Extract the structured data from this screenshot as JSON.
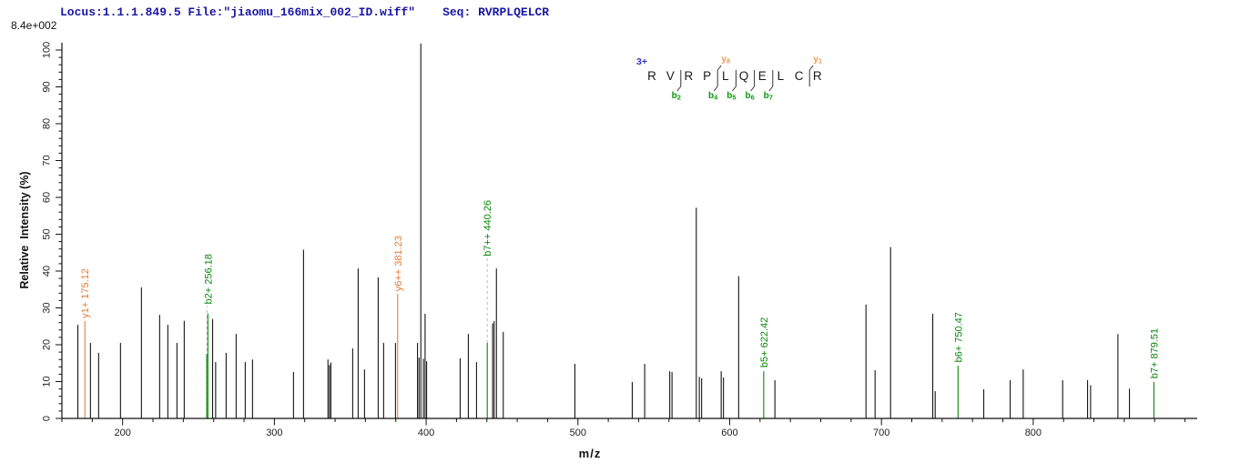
{
  "header": {
    "locus_file": "Locus:1.1.1.849.5 File:\"jiaomu_166mix_002_ID.wiff\"",
    "seq": "Seq: RVRPLQELCR"
  },
  "scale_label": "8.4e+002",
  "chart_data": {
    "type": "stem",
    "title": "MS/MS fragmentation spectrum",
    "xlabel": "m/z",
    "ylabel": "Relative  Intensity (%)",
    "xlim": [
      160,
      908
    ],
    "ylim": [
      0,
      100
    ],
    "x_major_ticks": [
      200,
      300,
      400,
      500,
      600,
      700,
      800
    ],
    "x_minor_step": 20,
    "y_major_step": 10,
    "y_minor_step": 2,
    "legend": "none",
    "grid": false,
    "colors": {
      "peak": "#151515",
      "b_ion": "#0a870a",
      "y_ion": "#e07e3c",
      "axis": "#111111"
    },
    "peaks": [
      {
        "mz": 170.5,
        "i": 25.4
      },
      {
        "mz": 175.12,
        "i": 26.4,
        "ion": "y",
        "label": "y1+ 175.12",
        "label_base": 27.2
      },
      {
        "mz": 178.8,
        "i": 20.5
      },
      {
        "mz": 184.2,
        "i": 17.8
      },
      {
        "mz": 198.6,
        "i": 20.5
      },
      {
        "mz": 212.4,
        "i": 35.6
      },
      {
        "mz": 224.4,
        "i": 28.1
      },
      {
        "mz": 229.8,
        "i": 25.4
      },
      {
        "mz": 235.8,
        "i": 20.5
      },
      {
        "mz": 240.6,
        "i": 26.5
      },
      {
        "mz": 255.4,
        "i": 17.5,
        "ion": "b"
      },
      {
        "mz": 256.18,
        "i": 28.5,
        "ion": "b",
        "label": "b2+ 256.18",
        "label_base": 31.0
      },
      {
        "mz": 259.3,
        "i": 27.0
      },
      {
        "mz": 261.3,
        "i": 15.3
      },
      {
        "mz": 268.2,
        "i": 17.8
      },
      {
        "mz": 274.8,
        "i": 22.9
      },
      {
        "mz": 280.8,
        "i": 15.3
      },
      {
        "mz": 285.6,
        "i": 16.0
      },
      {
        "mz": 312.6,
        "i": 12.6
      },
      {
        "mz": 319.2,
        "i": 45.8
      },
      {
        "mz": 335.3,
        "i": 16.0
      },
      {
        "mz": 336.3,
        "i": 14.5
      },
      {
        "mz": 337.2,
        "i": 15.2
      },
      {
        "mz": 351.6,
        "i": 19.0
      },
      {
        "mz": 355.2,
        "i": 40.7
      },
      {
        "mz": 359.4,
        "i": 13.3
      },
      {
        "mz": 368.4,
        "i": 38.3
      },
      {
        "mz": 372.0,
        "i": 20.5
      },
      {
        "mz": 379.8,
        "i": 20.5
      },
      {
        "mz": 381.23,
        "i": 33.8,
        "ion": "y",
        "label": "y6++ 381.23",
        "label_base": 34.5
      },
      {
        "mz": 394.3,
        "i": 20.5
      },
      {
        "mz": 395.3,
        "i": 16.5
      },
      {
        "mz": 396.5,
        "i": 101.8
      },
      {
        "mz": 398.2,
        "i": 16.2
      },
      {
        "mz": 399.3,
        "i": 28.4
      },
      {
        "mz": 400.3,
        "i": 15.5
      },
      {
        "mz": 422.4,
        "i": 16.3
      },
      {
        "mz": 427.8,
        "i": 22.9
      },
      {
        "mz": 433.2,
        "i": 15.3
      },
      {
        "mz": 440.26,
        "i": 20.5,
        "ion": "b",
        "label": "b7++ 440.26",
        "label_base": 44.0
      },
      {
        "mz": 443.8,
        "i": 25.8
      },
      {
        "mz": 444.8,
        "i": 26.4
      },
      {
        "mz": 446.3,
        "i": 40.7
      },
      {
        "mz": 450.8,
        "i": 23.5
      },
      {
        "mz": 498.0,
        "i": 14.8
      },
      {
        "mz": 535.8,
        "i": 9.9
      },
      {
        "mz": 544.0,
        "i": 14.8
      },
      {
        "mz": 560.5,
        "i": 12.8
      },
      {
        "mz": 562.0,
        "i": 12.6
      },
      {
        "mz": 578.0,
        "i": 57.2
      },
      {
        "mz": 580.0,
        "i": 11.3
      },
      {
        "mz": 581.5,
        "i": 10.9
      },
      {
        "mz": 594.4,
        "i": 12.8
      },
      {
        "mz": 595.9,
        "i": 11.1
      },
      {
        "mz": 605.9,
        "i": 38.6
      },
      {
        "mz": 622.42,
        "i": 12.8,
        "ion": "b",
        "label": "b5+ 622.42",
        "label_base": 13.8
      },
      {
        "mz": 629.8,
        "i": 10.4
      },
      {
        "mz": 689.8,
        "i": 30.9
      },
      {
        "mz": 695.8,
        "i": 13.1
      },
      {
        "mz": 706.0,
        "i": 46.5
      },
      {
        "mz": 733.8,
        "i": 28.4
      },
      {
        "mz": 735.4,
        "i": 7.4
      },
      {
        "mz": 750.47,
        "i": 14.3,
        "ion": "b",
        "label": "b6+ 750.47",
        "label_base": 15.2
      },
      {
        "mz": 767.4,
        "i": 7.9
      },
      {
        "mz": 784.8,
        "i": 10.4
      },
      {
        "mz": 793.4,
        "i": 13.3
      },
      {
        "mz": 819.4,
        "i": 10.4
      },
      {
        "mz": 835.8,
        "i": 10.4
      },
      {
        "mz": 837.8,
        "i": 9.0
      },
      {
        "mz": 855.8,
        "i": 22.9
      },
      {
        "mz": 863.4,
        "i": 8.1
      },
      {
        "mz": 879.51,
        "i": 9.9,
        "ion": "b",
        "label": "b7+ 879.51",
        "label_base": 10.8
      }
    ],
    "dashed_connectors": [
      {
        "mz": 255.55,
        "from": 0.5,
        "to": 30.5,
        "color": "#9cc49c"
      },
      {
        "mz": 440.26,
        "from": 20.5,
        "to": 43.5,
        "color": "#bdbdbd"
      }
    ]
  },
  "annotation": {
    "charge": "3+",
    "sequence": "RVRPLQELCR",
    "b_ions": [
      {
        "label": "b",
        "sub": "2",
        "cleave_after": 2
      },
      {
        "label": "b",
        "sub": "4",
        "cleave_after": 4
      },
      {
        "label": "b",
        "sub": "5",
        "cleave_after": 5
      },
      {
        "label": "b",
        "sub": "6",
        "cleave_after": 6
      },
      {
        "label": "b",
        "sub": "7",
        "cleave_after": 7
      }
    ],
    "y_ions": [
      {
        "label": "y",
        "sub": "8",
        "cleave_after": 4
      },
      {
        "label": "y",
        "sub": "1",
        "cleave_after": 9
      }
    ],
    "colors": {
      "charge": "#2b35c8",
      "residue": "#1a1a1a",
      "b_label": "#0a9a0a",
      "y_label": "#ef9a55"
    }
  }
}
